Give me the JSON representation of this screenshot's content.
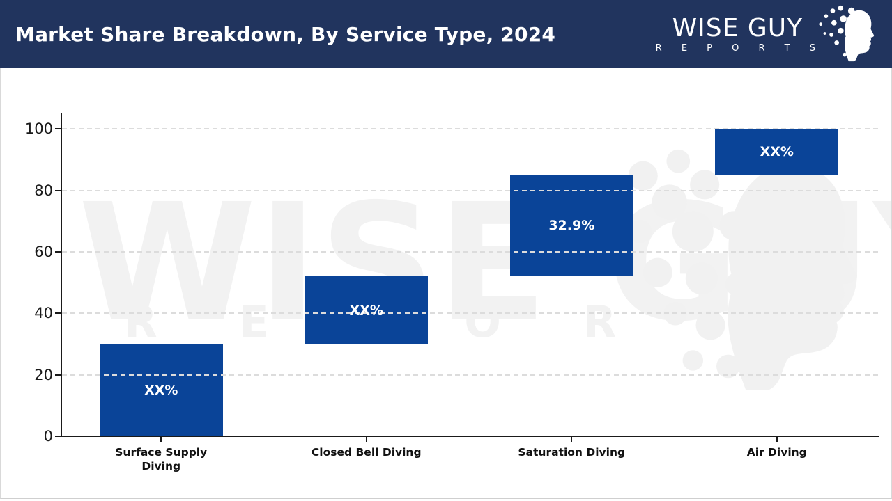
{
  "header": {
    "title": "Market Share Breakdown, By Service Type, 2024",
    "background": "#21345e",
    "logo": {
      "name": "WISE GUY",
      "sub": "R E P O R T S"
    }
  },
  "watermark": {
    "line1": "WISE GUY",
    "line2": "R E P O R T S",
    "color": "#f2f2f2"
  },
  "chart_data": {
    "type": "bar",
    "variant": "floating-segment (waterfall style market share)",
    "title": "Market Share Breakdown, By Service Type, 2024",
    "categories": [
      "Surface Supply Diving",
      "Closed Bell Diving",
      "Saturation Diving",
      "Air Diving"
    ],
    "segments": [
      {
        "name": "Surface Supply Diving",
        "label_lines": [
          "Surface Supply",
          "Diving"
        ],
        "start": 0,
        "end": 30,
        "value_label": "XX%"
      },
      {
        "name": "Closed Bell Diving",
        "label_lines": [
          "Closed Bell Diving"
        ],
        "start": 30,
        "end": 52,
        "value_label": "XX%"
      },
      {
        "name": "Saturation Diving",
        "label_lines": [
          "Saturation Diving"
        ],
        "start": 52,
        "end": 84.9,
        "value_label": "32.9%"
      },
      {
        "name": "Air Diving",
        "label_lines": [
          "Air Diving"
        ],
        "start": 84.9,
        "end": 100,
        "value_label": "XX%"
      }
    ],
    "yticks": [
      0,
      20,
      40,
      60,
      80,
      100
    ],
    "ylim": [
      0,
      105
    ],
    "grid": "dashed horizontal",
    "legend": "none",
    "xlabel": "",
    "ylabel": "",
    "bar_color": "#0a4498",
    "value_label_color": "#ffffff",
    "grid_color": "#dcdcdc",
    "axis_color": "#1a1a1a",
    "tick_label_color": "#1a1a1a"
  }
}
